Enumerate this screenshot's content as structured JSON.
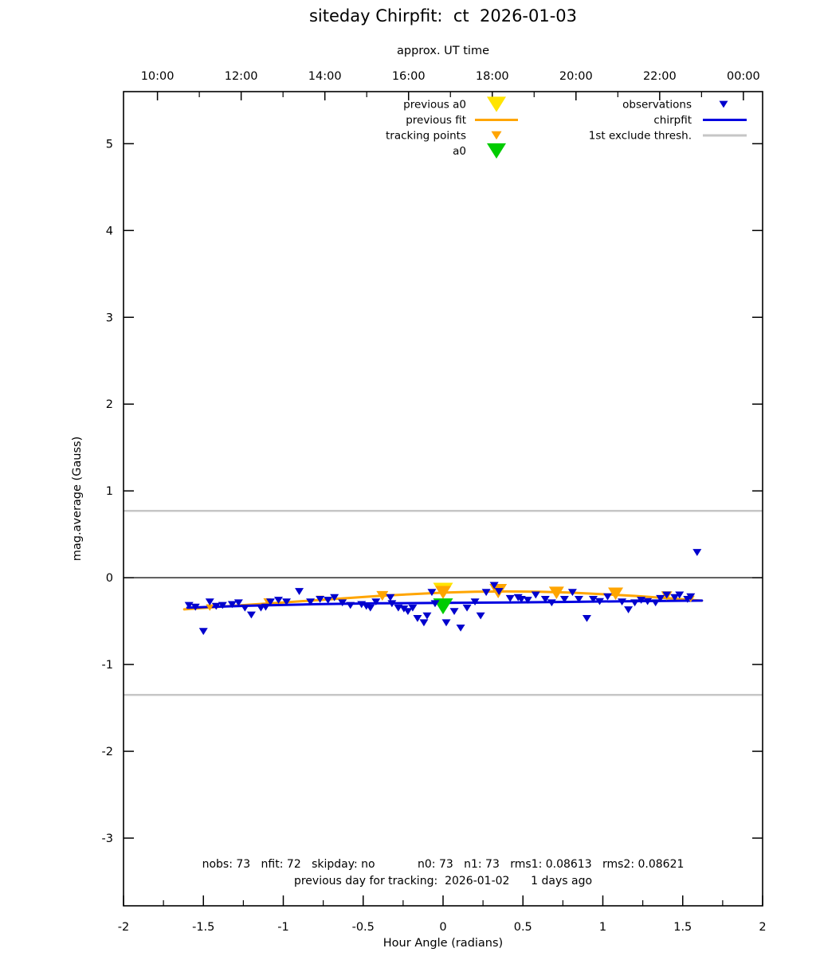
{
  "title": "siteday Chirpfit:  ct  2026-01-03",
  "top_axis_label": "approx. UT time",
  "x_axis_label": "Hour Angle (radians)",
  "y_axis_label": "mag.average (Gauss)",
  "stats": {
    "nobs": 73,
    "nfit": 72,
    "skipday": "no",
    "n0": 73,
    "n1": 73,
    "rms1": 0.08613,
    "rms2": 0.08621,
    "previous_day_for_tracking": "2026-01-02",
    "days_ago": "1 days ago",
    "line1": "nobs: 73   nfit: 72   skipday: no            n0: 73   n1: 73   rms1: 0.08613   rms2: 0.08621",
    "line2": "previous day for tracking:  2026-01-02      1 days ago"
  },
  "colors": {
    "observations": "#0000cd",
    "chirpfit": "#0000e0",
    "previous_fit": "#ffa500",
    "tracking": "#ffa500",
    "previous_a0": "#ffe400",
    "a0": "#00cc00",
    "threshold": "#c6c6c6",
    "zero_line": "#000000",
    "frame": "#000000"
  },
  "legend": {
    "left": [
      {
        "label": "previous a0",
        "symbol": "triangle",
        "color": "#ffe400",
        "size": 24
      },
      {
        "label": "previous fit",
        "symbol": "line",
        "color": "#ffa500"
      },
      {
        "label": "tracking points",
        "symbol": "triangle",
        "color": "#ffa500",
        "size": 13
      },
      {
        "label": "a0",
        "symbol": "triangle",
        "color": "#00cc00",
        "size": 24
      }
    ],
    "right": [
      {
        "label": "observations",
        "symbol": "triangle",
        "color": "#0000cd",
        "size": 11
      },
      {
        "label": "chirpfit",
        "symbol": "line",
        "color": "#0000e0"
      },
      {
        "label": "1st exclude thresh.",
        "symbol": "line",
        "color": "#c6c6c6"
      }
    ]
  },
  "chart_data": {
    "type": "scatter",
    "xlabel": "Hour Angle (radians)",
    "ylabel": "mag.average (Gauss)",
    "x2label": "approx. UT time",
    "xlim": [
      -2,
      2
    ],
    "ylim": [
      -3.78,
      5.6
    ],
    "x_ticks": [
      {
        "v": -2,
        "label": "-2"
      },
      {
        "v": -1.5,
        "label": "-1.5"
      },
      {
        "v": -1,
        "label": "-1"
      },
      {
        "v": -0.5,
        "label": "-0.5"
      },
      {
        "v": 0,
        "label": "0"
      },
      {
        "v": 0.5,
        "label": "0.5"
      },
      {
        "v": 1,
        "label": "1"
      },
      {
        "v": 1.5,
        "label": "1.5"
      },
      {
        "v": 2,
        "label": "2"
      }
    ],
    "x_minor_step": 0.25,
    "y_ticks": [
      -3,
      -2,
      -1,
      0,
      1,
      2,
      3,
      4,
      5
    ],
    "top_ticks": {
      "start_hour": 10,
      "end_hour": 24,
      "labels": [
        {
          "hour": 10,
          "label": "10:00"
        },
        {
          "hour": 12,
          "label": "12:00"
        },
        {
          "hour": 14,
          "label": "14:00"
        },
        {
          "hour": 16,
          "label": "16:00"
        },
        {
          "hour": 18,
          "label": "18:00"
        },
        {
          "hour": 20,
          "label": "20:00"
        },
        {
          "hour": 22,
          "label": "22:00"
        },
        {
          "hour": 24,
          "label": "00:00"
        }
      ]
    },
    "zero_line": 0,
    "exclude_thresholds": [
      0.77,
      -1.35
    ],
    "series": [
      {
        "name": "observations",
        "type": "points",
        "marker": "triangle-down",
        "color": "#0000cd",
        "size": 11,
        "points": [
          [
            -1.59,
            -0.32
          ],
          [
            -1.55,
            -0.34
          ],
          [
            -1.5,
            -0.62
          ],
          [
            -1.46,
            -0.28
          ],
          [
            -1.42,
            -0.33
          ],
          [
            -1.38,
            -0.32
          ],
          [
            -1.32,
            -0.31
          ],
          [
            -1.28,
            -0.29
          ],
          [
            -1.24,
            -0.35
          ],
          [
            -1.2,
            -0.43
          ],
          [
            -1.14,
            -0.35
          ],
          [
            -1.11,
            -0.34
          ],
          [
            -1.08,
            -0.28
          ],
          [
            -1.03,
            -0.26
          ],
          [
            -0.98,
            -0.28
          ],
          [
            -0.9,
            -0.16
          ],
          [
            -0.83,
            -0.28
          ],
          [
            -0.77,
            -0.25
          ],
          [
            -0.72,
            -0.26
          ],
          [
            -0.68,
            -0.23
          ],
          [
            -0.63,
            -0.29
          ],
          [
            -0.58,
            -0.32
          ],
          [
            -0.51,
            -0.31
          ],
          [
            -0.48,
            -0.33
          ],
          [
            -0.455,
            -0.35
          ],
          [
            -0.42,
            -0.28
          ],
          [
            -0.33,
            -0.23
          ],
          [
            -0.32,
            -0.3
          ],
          [
            -0.28,
            -0.35
          ],
          [
            -0.245,
            -0.36
          ],
          [
            -0.22,
            -0.39
          ],
          [
            -0.19,
            -0.35
          ],
          [
            -0.16,
            -0.47
          ],
          [
            -0.12,
            -0.52
          ],
          [
            -0.1,
            -0.44
          ],
          [
            -0.07,
            -0.17
          ],
          [
            -0.05,
            -0.3
          ],
          [
            0.02,
            -0.52
          ],
          [
            0.07,
            -0.39
          ],
          [
            0.11,
            -0.58
          ],
          [
            0.15,
            -0.35
          ],
          [
            0.2,
            -0.28
          ],
          [
            0.235,
            -0.44
          ],
          [
            0.27,
            -0.17
          ],
          [
            0.32,
            -0.09
          ],
          [
            0.35,
            -0.16
          ],
          [
            0.42,
            -0.24
          ],
          [
            0.47,
            -0.23
          ],
          [
            0.49,
            -0.25
          ],
          [
            0.53,
            -0.26
          ],
          [
            0.58,
            -0.2
          ],
          [
            0.64,
            -0.25
          ],
          [
            0.68,
            -0.29
          ],
          [
            0.76,
            -0.25
          ],
          [
            0.81,
            -0.17
          ],
          [
            0.85,
            -0.25
          ],
          [
            0.9,
            -0.47
          ],
          [
            0.94,
            -0.25
          ],
          [
            0.98,
            -0.275
          ],
          [
            1.03,
            -0.22
          ],
          [
            1.12,
            -0.28
          ],
          [
            1.16,
            -0.37
          ],
          [
            1.2,
            -0.29
          ],
          [
            1.24,
            -0.26
          ],
          [
            1.28,
            -0.275
          ],
          [
            1.33,
            -0.29
          ],
          [
            1.36,
            -0.24
          ],
          [
            1.4,
            -0.2
          ],
          [
            1.45,
            -0.23
          ],
          [
            1.48,
            -0.2
          ],
          [
            1.53,
            -0.25
          ],
          [
            1.55,
            -0.22
          ],
          [
            1.59,
            0.29
          ]
        ]
      },
      {
        "name": "chirpfit",
        "type": "line",
        "color": "#0000e0",
        "points": [
          [
            -1.6,
            -0.345
          ],
          [
            -1.2,
            -0.322
          ],
          [
            -0.8,
            -0.305
          ],
          [
            -0.4,
            -0.295
          ],
          [
            0,
            -0.29
          ],
          [
            0.4,
            -0.285
          ],
          [
            0.8,
            -0.278
          ],
          [
            1.2,
            -0.27
          ],
          [
            1.62,
            -0.264
          ]
        ]
      },
      {
        "name": "previous fit",
        "type": "line",
        "color": "#ffa500",
        "points": [
          [
            -1.62,
            -0.365
          ],
          [
            -1.4,
            -0.335
          ],
          [
            -1.2,
            -0.31
          ],
          [
            -1.0,
            -0.285
          ],
          [
            -0.8,
            -0.26
          ],
          [
            -0.6,
            -0.235
          ],
          [
            -0.4,
            -0.21
          ],
          [
            -0.2,
            -0.19
          ],
          [
            0,
            -0.172
          ],
          [
            0.2,
            -0.162
          ],
          [
            0.4,
            -0.158
          ],
          [
            0.6,
            -0.162
          ],
          [
            0.8,
            -0.172
          ],
          [
            1.0,
            -0.19
          ],
          [
            1.2,
            -0.21
          ],
          [
            1.4,
            -0.235
          ],
          [
            1.62,
            -0.265
          ]
        ]
      },
      {
        "name": "tracking points",
        "type": "points",
        "marker": "triangle-down",
        "color": "#ffa500",
        "points": [
          [
            -1.46,
            -0.345,
            10
          ],
          [
            -1.1,
            -0.275,
            10
          ],
          [
            -0.77,
            -0.245,
            10
          ],
          [
            -0.38,
            -0.21,
            15
          ],
          [
            0.0,
            -0.17,
            20
          ],
          [
            0.345,
            -0.155,
            22
          ],
          [
            0.71,
            -0.175,
            19
          ],
          [
            1.08,
            -0.185,
            19
          ],
          [
            1.4,
            -0.21,
            14
          ],
          [
            1.55,
            -0.245,
            10
          ]
        ]
      },
      {
        "name": "previous a0",
        "type": "points",
        "marker": "triangle-down",
        "color": "#ffe400",
        "size": 25,
        "points": [
          [
            0,
            -0.15
          ]
        ]
      },
      {
        "name": "a0",
        "type": "points",
        "marker": "triangle-down",
        "color": "#00cc00",
        "size": 25,
        "points": [
          [
            0,
            -0.33
          ]
        ]
      }
    ]
  }
}
